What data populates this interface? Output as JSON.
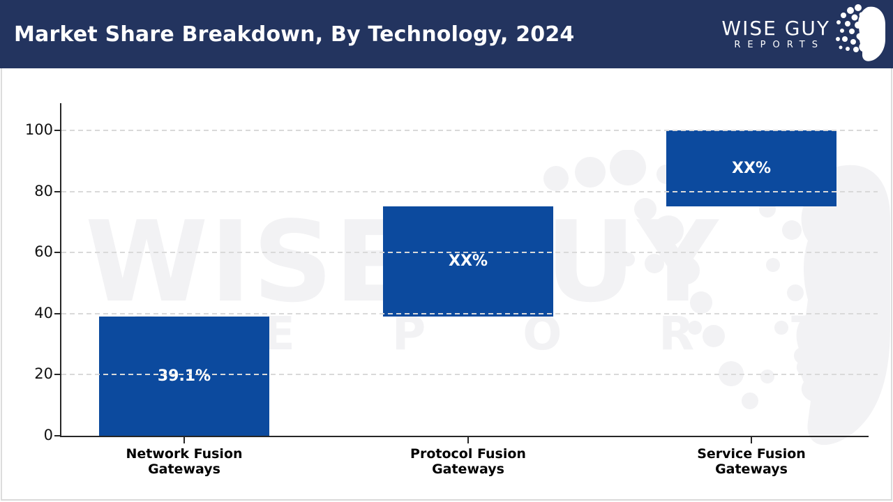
{
  "header": {
    "title": "Market Share Breakdown, By Technology, 2024",
    "bg_color": "#23345f",
    "logo": {
      "line1": "WISE GUY",
      "line2": "REPORTS"
    }
  },
  "watermark": {
    "line1": "WISE GUY",
    "line2": "R E P O R T S"
  },
  "chart_data": {
    "type": "bar",
    "variant": "floating-segment-waterfall",
    "title": "Market Share Breakdown, By Technology, 2024",
    "categories": [
      "Network Fusion Gateways",
      "Protocol Fusion Gateways",
      "Service Fusion Gateways"
    ],
    "bars": [
      {
        "category": "Network Fusion Gateways",
        "start": 0,
        "end": 39.1,
        "label": "39.1%"
      },
      {
        "category": "Protocol Fusion Gateways",
        "start": 39.1,
        "end": 75.2,
        "label": "XX%"
      },
      {
        "category": "Service Fusion Gateways",
        "start": 75.2,
        "end": 100,
        "label": "XX%"
      }
    ],
    "yticks": [
      0,
      20,
      40,
      60,
      80,
      100
    ],
    "ylim": [
      0,
      100
    ],
    "xlabel": "",
    "ylabel": "",
    "legend": "none",
    "grid": {
      "horizontal": true,
      "style": "dashed",
      "color": "#d9d9d9",
      "drawn_over_bars": true
    },
    "bar_color": "#0c4a9e",
    "bar_label_color": "#ffffff",
    "axis_color": "#262626"
  }
}
